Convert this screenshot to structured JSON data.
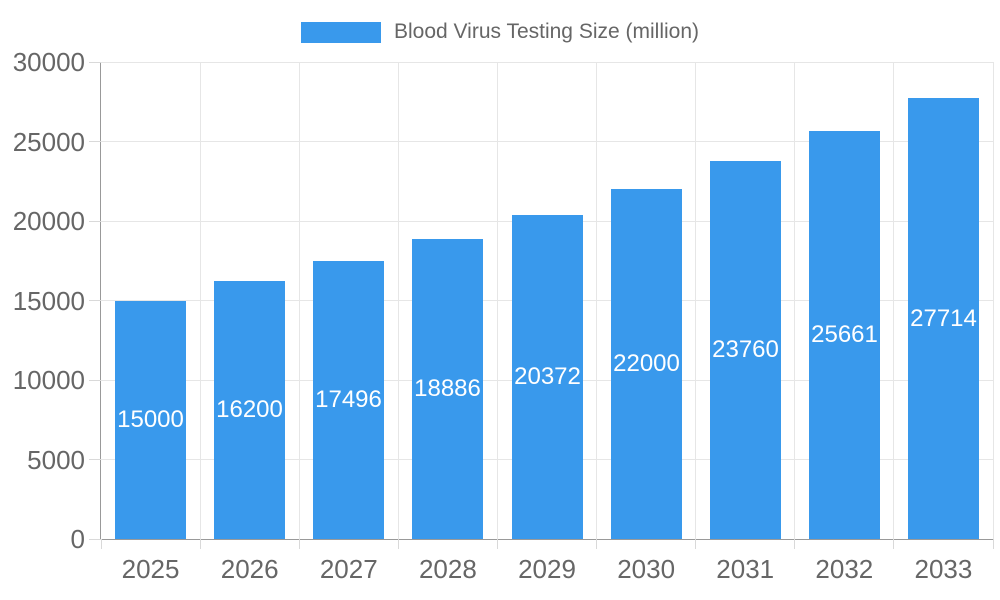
{
  "chart_data": {
    "type": "bar",
    "legend_label": "Blood Virus Testing Size (million)",
    "legend_position": "top-center",
    "categories": [
      "2025",
      "2026",
      "2027",
      "2028",
      "2029",
      "2030",
      "2031",
      "2032",
      "2033"
    ],
    "values": [
      15000,
      16200,
      17496,
      18886,
      20372,
      22000,
      23760,
      25661,
      27714
    ],
    "xlabel": "",
    "ylabel": "",
    "ylim": [
      0,
      30000
    ],
    "yticks": [
      0,
      5000,
      10000,
      15000,
      20000,
      25000,
      30000
    ],
    "grid": true,
    "bar_label_position": "center-inside",
    "colors": {
      "bar": "#3999EC",
      "value_label": "#FFFFFF",
      "axis_text": "#666666",
      "legend_text": "#666666",
      "gridline": "#E6E6E6",
      "tick": "#D9D9D9",
      "axis_line": "#999999",
      "background": "#FFFFFF"
    }
  }
}
